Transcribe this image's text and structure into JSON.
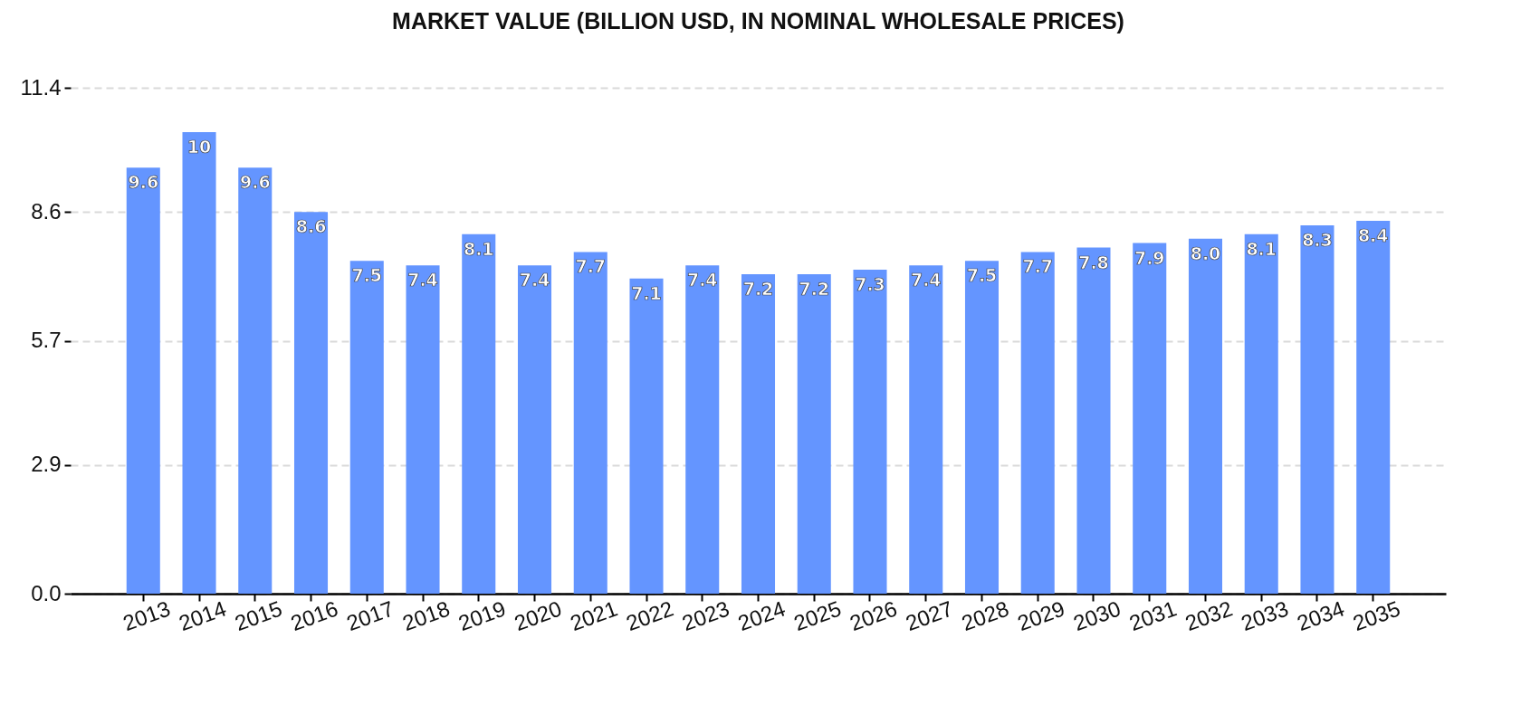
{
  "chart_data": {
    "type": "bar",
    "title": "MARKET VALUE (BILLION USD, IN NOMINAL WHOLESALE PRICES)",
    "categories": [
      "2013",
      "2014",
      "2015",
      "2016",
      "2017",
      "2018",
      "2019",
      "2020",
      "2021",
      "2022",
      "2023",
      "2024",
      "2025",
      "2026",
      "2027",
      "2028",
      "2029",
      "2030",
      "2031",
      "2032",
      "2033",
      "2034",
      "2035"
    ],
    "values": [
      9.6,
      10.4,
      9.6,
      8.6,
      7.5,
      7.4,
      8.1,
      7.4,
      7.7,
      7.1,
      7.4,
      7.2,
      7.2,
      7.3,
      7.4,
      7.5,
      7.7,
      7.8,
      7.9,
      8.0,
      8.1,
      8.3,
      8.4
    ],
    "value_labels": [
      "9.6",
      "10",
      "9.6",
      "8.6",
      "7.5",
      "7.4",
      "8.1",
      "7.4",
      "7.7",
      "7.1",
      "7.4",
      "7.2",
      "7.2",
      "7.3",
      "7.4",
      "7.5",
      "7.7",
      "7.8",
      "7.9",
      "8.0",
      "8.1",
      "8.3",
      "8.4"
    ],
    "color": "#6495ff",
    "ylim": [
      0,
      11.4
    ],
    "yticks": [
      {
        "value": 0,
        "label": "0.0"
      },
      2.9,
      5.7,
      8.6,
      11.4
    ],
    "grid": "y"
  }
}
